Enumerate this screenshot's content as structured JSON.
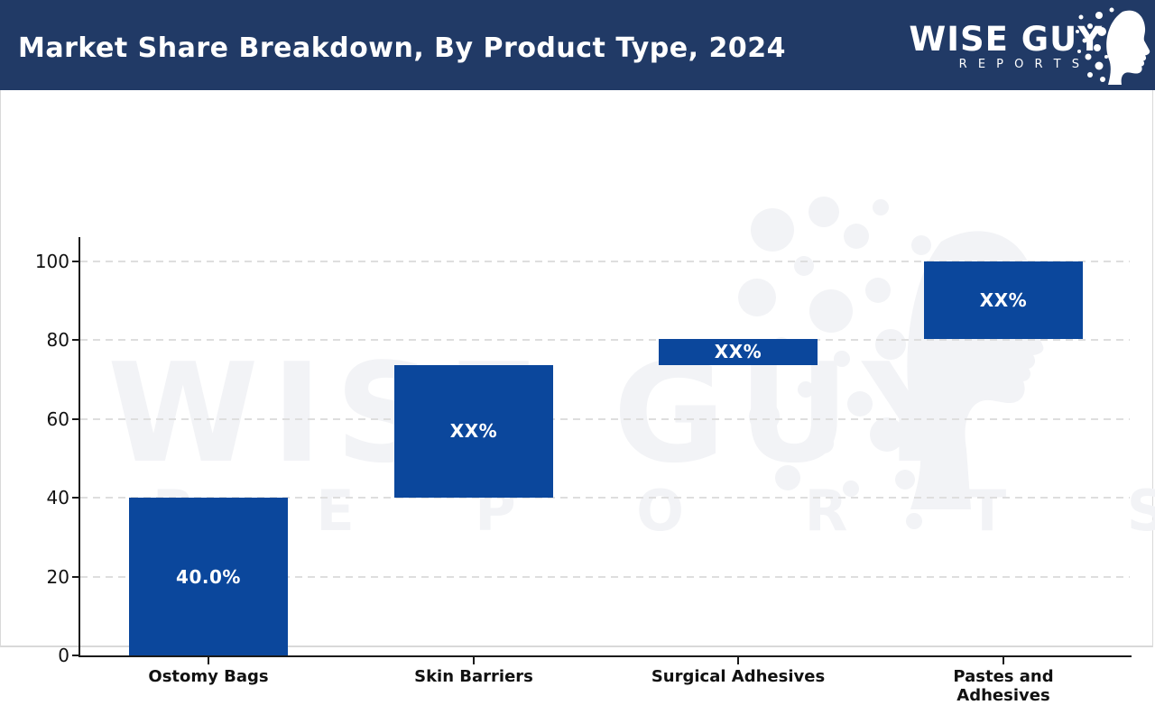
{
  "header": {
    "title": "Market Share Breakdown, By Product Type, 2024",
    "logo": {
      "name": "WISE GUY",
      "sub": "R E P O R T S"
    }
  },
  "watermark": {
    "line1": "WISE GUY",
    "line2": "R E P O R T S"
  },
  "colors": {
    "header_bg": "#213a66",
    "bar": "#0b479c",
    "grid": "#dedede",
    "axis": "#1a1a1a",
    "watermark": "#f2f3f6",
    "title_text": "#ffffff"
  },
  "chart_data": {
    "type": "bar",
    "subtype": "waterfall",
    "title": "Market Share Breakdown, By Product Type, 2024",
    "categories": [
      "Ostomy Bags",
      "Skin Barriers",
      "Surgical Adhesives",
      "Pastes and\nAdhesives"
    ],
    "segments": [
      {
        "category": "Ostomy Bags",
        "start": 0,
        "end": 40,
        "value": 40.0,
        "label": "40.0%"
      },
      {
        "category": "Skin Barriers",
        "start": 40,
        "end": 73.7,
        "value": 33.7,
        "label": "XX%"
      },
      {
        "category": "Surgical Adhesives",
        "start": 73.7,
        "end": 80.2,
        "value": 6.5,
        "label": "XX%"
      },
      {
        "category": "Pastes and Adhesives",
        "start": 80.2,
        "end": 100,
        "value": 19.8,
        "label": "XX%"
      }
    ],
    "yticks": [
      0,
      20,
      40,
      60,
      80,
      100
    ],
    "ylim": [
      0,
      105
    ],
    "xlabel": "",
    "ylabel": "",
    "grid": "horizontal-dashed",
    "legend": "none"
  }
}
